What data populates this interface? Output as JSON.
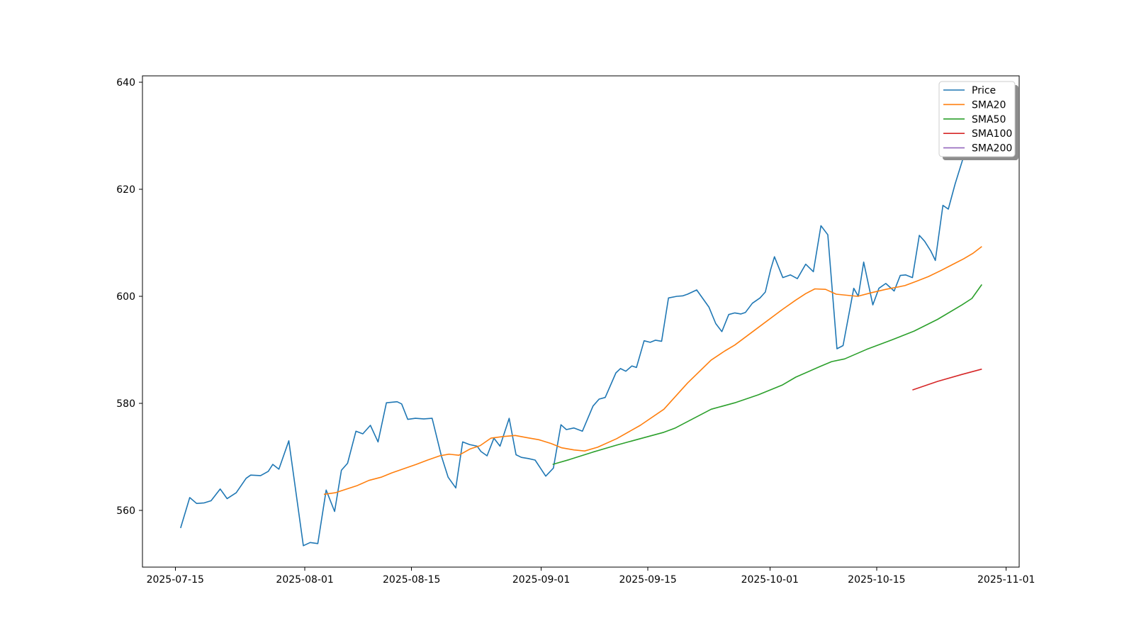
{
  "figure": {
    "background": "#ffffff",
    "plot_background": "#ffffff",
    "spine_color": "#000000",
    "tick_label_color": "#000000",
    "grid": false
  },
  "chart_data": {
    "type": "line",
    "title": "",
    "xlabel": "",
    "ylabel": "",
    "x_unit": "date",
    "x_origin": "2025-07-15",
    "xlim_days": [
      -4.3,
      110.7
    ],
    "ylim": [
      549.4,
      641.2
    ],
    "x_ticks": [
      {
        "d": 0,
        "label": "2025-07-15"
      },
      {
        "d": 17,
        "label": "2025-08-01"
      },
      {
        "d": 31,
        "label": "2025-08-15"
      },
      {
        "d": 48,
        "label": "2025-09-01"
      },
      {
        "d": 62,
        "label": "2025-09-15"
      },
      {
        "d": 78,
        "label": "2025-10-01"
      },
      {
        "d": 92,
        "label": "2025-10-15"
      },
      {
        "d": 109,
        "label": "2025-11-01"
      }
    ],
    "y_ticks": [
      {
        "v": 560,
        "label": "560"
      },
      {
        "v": 580,
        "label": "580"
      },
      {
        "v": 600,
        "label": "600"
      },
      {
        "v": 620,
        "label": "620"
      },
      {
        "v": 640,
        "label": "640"
      }
    ],
    "legend": {
      "position": "upper-right",
      "shadow": true,
      "border_color": "#cccccc",
      "background": "#ffffff",
      "shadow_color": "#8c8c8c",
      "entries": [
        {
          "label": "Price",
          "color": "#1f77b4"
        },
        {
          "label": "SMA20",
          "color": "#ff7f0e"
        },
        {
          "label": "SMA50",
          "color": "#2ca02c"
        },
        {
          "label": "SMA100",
          "color": "#d62728"
        },
        {
          "label": "SMA200",
          "color": "#9467bd"
        }
      ]
    },
    "series": [
      {
        "name": "Price",
        "color": "#1f77b4",
        "width": 1.6,
        "points": [
          [
            0.7,
            556.7
          ],
          [
            1.9,
            562.4
          ],
          [
            2.8,
            561.3
          ],
          [
            3.8,
            561.4
          ],
          [
            4.7,
            561.8
          ],
          [
            5.9,
            564.0
          ],
          [
            6.8,
            562.2
          ],
          [
            8.0,
            563.3
          ],
          [
            9.3,
            566.0
          ],
          [
            9.9,
            566.6
          ],
          [
            11.2,
            566.5
          ],
          [
            12.2,
            567.3
          ],
          [
            12.8,
            568.6
          ],
          [
            13.6,
            567.7
          ],
          [
            14.9,
            573.0
          ],
          [
            16.8,
            553.4
          ],
          [
            17.7,
            554.0
          ],
          [
            18.7,
            553.8
          ],
          [
            19.8,
            563.8
          ],
          [
            20.9,
            559.8
          ],
          [
            21.8,
            567.5
          ],
          [
            22.6,
            568.8
          ],
          [
            23.7,
            574.8
          ],
          [
            24.6,
            574.3
          ],
          [
            25.6,
            575.9
          ],
          [
            26.6,
            572.8
          ],
          [
            27.7,
            580.1
          ],
          [
            29.1,
            580.3
          ],
          [
            29.7,
            579.9
          ],
          [
            30.5,
            577.0
          ],
          [
            31.5,
            577.2
          ],
          [
            32.6,
            577.1
          ],
          [
            33.7,
            577.2
          ],
          [
            34.9,
            570.2
          ],
          [
            35.8,
            566.2
          ],
          [
            36.8,
            564.2
          ],
          [
            37.7,
            572.8
          ],
          [
            38.6,
            572.3
          ],
          [
            39.6,
            572.0
          ],
          [
            40.1,
            571.0
          ],
          [
            40.9,
            570.2
          ],
          [
            41.8,
            573.5
          ],
          [
            42.6,
            572.0
          ],
          [
            43.8,
            577.2
          ],
          [
            44.7,
            570.4
          ],
          [
            45.4,
            569.9
          ],
          [
            46.3,
            569.7
          ],
          [
            47.2,
            569.4
          ],
          [
            48.6,
            566.4
          ],
          [
            49.6,
            567.9
          ],
          [
            50.6,
            576.0
          ],
          [
            51.3,
            575.1
          ],
          [
            52.3,
            575.4
          ],
          [
            53.4,
            574.8
          ],
          [
            54.8,
            579.5
          ],
          [
            55.6,
            580.8
          ],
          [
            56.4,
            581.1
          ],
          [
            57.8,
            585.7
          ],
          [
            58.4,
            586.5
          ],
          [
            59.1,
            586.0
          ],
          [
            59.9,
            587.0
          ],
          [
            60.5,
            586.7
          ],
          [
            61.5,
            591.7
          ],
          [
            62.3,
            591.4
          ],
          [
            63.0,
            591.8
          ],
          [
            63.8,
            591.6
          ],
          [
            64.7,
            599.7
          ],
          [
            65.8,
            600.0
          ],
          [
            66.6,
            600.1
          ],
          [
            67.2,
            600.4
          ],
          [
            68.4,
            601.2
          ],
          [
            70.0,
            598.0
          ],
          [
            70.9,
            594.9
          ],
          [
            71.7,
            593.4
          ],
          [
            72.6,
            596.6
          ],
          [
            73.4,
            596.9
          ],
          [
            74.2,
            596.7
          ],
          [
            74.8,
            597.0
          ],
          [
            75.7,
            598.7
          ],
          [
            76.7,
            599.7
          ],
          [
            77.4,
            600.8
          ],
          [
            78.1,
            605.0
          ],
          [
            78.6,
            607.4
          ],
          [
            79.7,
            603.5
          ],
          [
            80.7,
            604.0
          ],
          [
            81.6,
            603.3
          ],
          [
            82.7,
            606.0
          ],
          [
            83.7,
            604.6
          ],
          [
            84.7,
            613.2
          ],
          [
            85.6,
            611.5
          ],
          [
            86.8,
            590.2
          ],
          [
            87.6,
            590.8
          ],
          [
            89.0,
            601.5
          ],
          [
            89.6,
            600.0
          ],
          [
            90.3,
            606.4
          ],
          [
            91.5,
            598.4
          ],
          [
            92.3,
            601.5
          ],
          [
            93.2,
            602.4
          ],
          [
            94.3,
            601.0
          ],
          [
            95.1,
            603.9
          ],
          [
            95.8,
            604.0
          ],
          [
            96.7,
            603.5
          ],
          [
            97.6,
            611.4
          ],
          [
            98.3,
            610.3
          ],
          [
            99.1,
            608.5
          ],
          [
            99.7,
            606.7
          ],
          [
            100.7,
            617.0
          ],
          [
            101.4,
            616.3
          ],
          [
            102.3,
            621.0
          ],
          [
            103.3,
            625.6
          ],
          [
            104.2,
            627.3
          ],
          [
            105.0,
            626.0
          ],
          [
            105.8,
            629.8
          ]
        ]
      },
      {
        "name": "SMA20",
        "color": "#ff7f0e",
        "width": 1.6,
        "points": [
          [
            19.5,
            563.0
          ],
          [
            21.0,
            563.3
          ],
          [
            22.3,
            563.9
          ],
          [
            23.8,
            564.6
          ],
          [
            25.4,
            565.6
          ],
          [
            27.0,
            566.2
          ],
          [
            28.4,
            567.0
          ],
          [
            30.0,
            567.8
          ],
          [
            31.6,
            568.6
          ],
          [
            33.1,
            569.4
          ],
          [
            34.7,
            570.2
          ],
          [
            35.9,
            570.5
          ],
          [
            37.2,
            570.3
          ],
          [
            38.7,
            571.5
          ],
          [
            40.0,
            572.1
          ],
          [
            41.4,
            573.5
          ],
          [
            43.0,
            573.8
          ],
          [
            44.6,
            574.0
          ],
          [
            46.1,
            573.6
          ],
          [
            47.7,
            573.2
          ],
          [
            49.3,
            572.5
          ],
          [
            50.7,
            571.7
          ],
          [
            52.3,
            571.3
          ],
          [
            53.7,
            571.1
          ],
          [
            55.4,
            571.8
          ],
          [
            57.9,
            573.4
          ],
          [
            61.0,
            575.9
          ],
          [
            64.1,
            578.9
          ],
          [
            67.2,
            583.8
          ],
          [
            70.3,
            588.1
          ],
          [
            72.1,
            589.8
          ],
          [
            73.4,
            590.9
          ],
          [
            76.5,
            594.2
          ],
          [
            79.6,
            597.5
          ],
          [
            81.4,
            599.3
          ],
          [
            82.7,
            600.5
          ],
          [
            83.9,
            601.4
          ],
          [
            85.3,
            601.3
          ],
          [
            86.7,
            600.4
          ],
          [
            88.1,
            600.2
          ],
          [
            89.5,
            600.0
          ],
          [
            91.4,
            600.7
          ],
          [
            93.2,
            601.3
          ],
          [
            94.3,
            601.6
          ],
          [
            95.7,
            602.0
          ],
          [
            97.2,
            602.8
          ],
          [
            98.8,
            603.7
          ],
          [
            100.4,
            604.8
          ],
          [
            101.9,
            605.9
          ],
          [
            103.4,
            607.0
          ],
          [
            104.6,
            608.0
          ],
          [
            105.8,
            609.3
          ]
        ]
      },
      {
        "name": "SMA50",
        "color": "#2ca02c",
        "width": 1.6,
        "points": [
          [
            49.5,
            568.6
          ],
          [
            51.7,
            569.5
          ],
          [
            54.8,
            570.9
          ],
          [
            57.9,
            572.2
          ],
          [
            61.0,
            573.4
          ],
          [
            64.1,
            574.6
          ],
          [
            65.6,
            575.4
          ],
          [
            67.2,
            576.6
          ],
          [
            70.3,
            578.9
          ],
          [
            73.4,
            580.1
          ],
          [
            76.5,
            581.6
          ],
          [
            79.6,
            583.4
          ],
          [
            81.4,
            584.9
          ],
          [
            84.6,
            586.9
          ],
          [
            86.1,
            587.8
          ],
          [
            87.8,
            588.3
          ],
          [
            90.7,
            590.1
          ],
          [
            93.9,
            591.8
          ],
          [
            96.9,
            593.5
          ],
          [
            100.0,
            595.7
          ],
          [
            103.2,
            598.4
          ],
          [
            104.5,
            599.6
          ],
          [
            105.8,
            602.2
          ]
        ]
      },
      {
        "name": "SMA100",
        "color": "#d62728",
        "width": 1.6,
        "points": [
          [
            96.7,
            582.5
          ],
          [
            100.0,
            584.1
          ],
          [
            103.2,
            585.4
          ],
          [
            105.8,
            586.4
          ]
        ]
      },
      {
        "name": "SMA200",
        "color": "#9467bd",
        "width": 1.6,
        "points": []
      }
    ]
  }
}
